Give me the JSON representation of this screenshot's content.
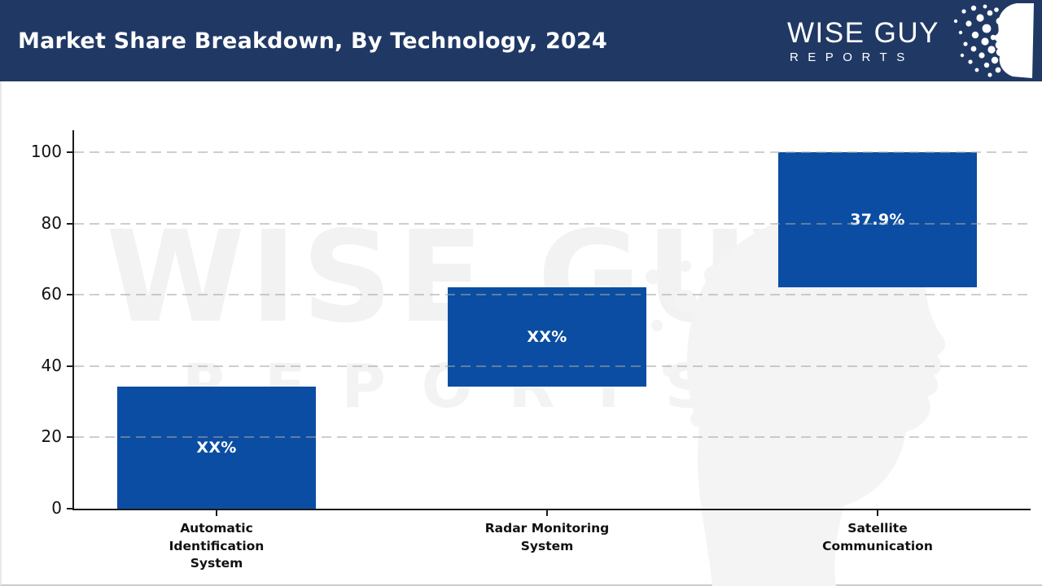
{
  "header": {
    "title": "Market Share Breakdown, By Technology, 2024",
    "logo": {
      "line1": "WISE GUY",
      "line2": "REPORTS"
    }
  },
  "watermark": {
    "line1": "WISE GUY",
    "line2": "REPORTS"
  },
  "chart_data": {
    "type": "bar",
    "subtype": "floating-segment-breakdown",
    "title": "Market Share Breakdown, By Technology, 2024",
    "categories": [
      "Automatic\nIdentification\nSystem",
      "Radar Monitoring\nSystem",
      "Satellite\nCommunication"
    ],
    "segments": [
      {
        "category": "Automatic Identification System",
        "start": 0,
        "end": 34.2,
        "label": "XX%"
      },
      {
        "category": "Radar Monitoring System",
        "start": 34.2,
        "end": 62.1,
        "label": "XX%"
      },
      {
        "category": "Satellite Communication",
        "start": 62.1,
        "end": 100,
        "label": "37.9%"
      }
    ],
    "xlabel": "",
    "ylabel": "",
    "ylim": [
      0,
      106
    ],
    "yticks": [
      0,
      20,
      40,
      60,
      80,
      100
    ],
    "grid": "horizontal-dashed",
    "legend": "none",
    "bar_color": "#0b4da2"
  },
  "colors": {
    "header_bg": "#203864",
    "bar": "#0b4da2",
    "axis": "#1a1a1a",
    "grid": "#a5a5a5",
    "watermark": "#f2f2f2",
    "title_text": "#ffffff"
  }
}
